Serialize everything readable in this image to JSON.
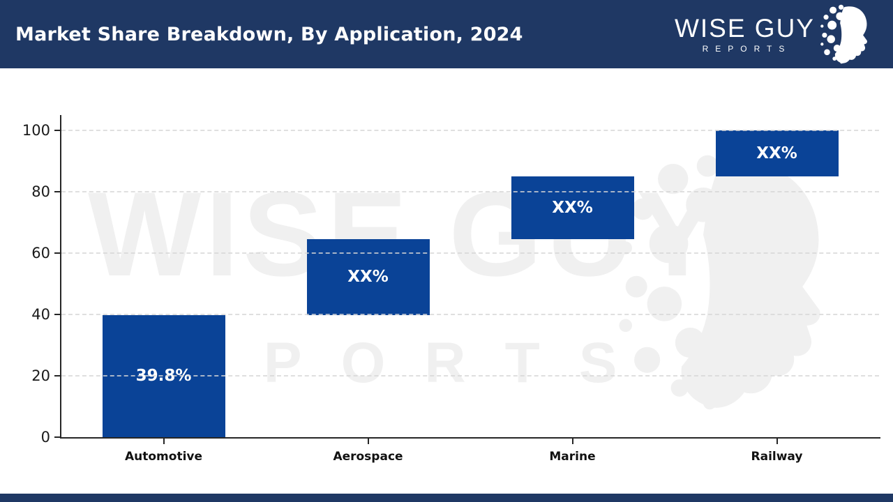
{
  "header": {
    "title": "Market Share Breakdown, By Application, 2024",
    "logo": {
      "line1": "WISE GUY",
      "line2": "REPORTS"
    }
  },
  "watermark": {
    "line1": "WISE GUY",
    "line2": "REPORTS"
  },
  "colors": {
    "header_bg": "#1f3864",
    "footer_bg": "#1f3864",
    "bar": "#0a4397",
    "bar_label": "#ffffff",
    "axis": "#262626",
    "gridline": "#d6d6d6",
    "watermark": "#f0f0f0"
  },
  "chart_data": {
    "type": "bar",
    "subtype": "waterfall",
    "title": "Market Share Breakdown, By Application, 2024",
    "categories": [
      "Automotive",
      "Aerospace",
      "Marine",
      "Railway"
    ],
    "segments": [
      {
        "category": "Automotive",
        "start": 0,
        "end": 39.8,
        "label": "39.8%"
      },
      {
        "category": "Aerospace",
        "start": 39.8,
        "end": 64.6,
        "label": "XX%"
      },
      {
        "category": "Marine",
        "start": 64.6,
        "end": 85.0,
        "label": "XX%"
      },
      {
        "category": "Railway",
        "start": 85.0,
        "end": 100.0,
        "label": "XX%"
      }
    ],
    "xlabel": "",
    "ylabel": "",
    "yticks": [
      0,
      20,
      40,
      60,
      80,
      100
    ],
    "ylim": [
      0,
      105
    ],
    "grid": "horizontal-dashed",
    "legend": null
  }
}
